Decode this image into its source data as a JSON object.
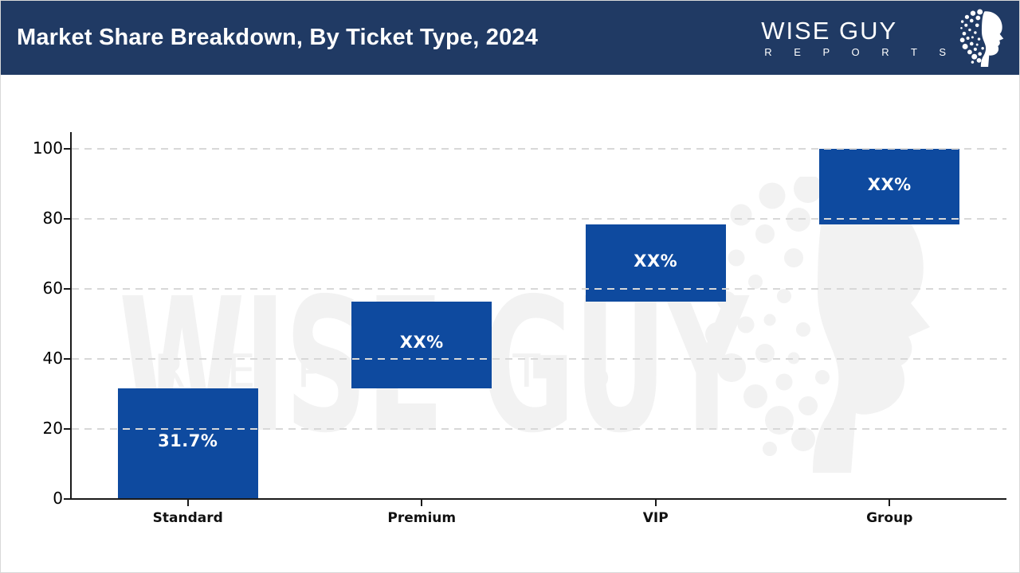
{
  "header": {
    "title": "Market Share Breakdown, By Ticket Type, 2024",
    "bg_color": "#203A64",
    "logo": {
      "line1": "WISE GUY",
      "line2": "R E P O R T S"
    }
  },
  "watermark": {
    "line1": "WISE GUY",
    "line2": "REPORTS",
    "color": "#f2f2f2"
  },
  "chart_data": {
    "type": "bar",
    "subtype": "waterfall",
    "title": "Market Share Breakdown, By Ticket Type, 2024",
    "categories": [
      "Standard",
      "Premium",
      "VIP",
      "Group"
    ],
    "segments": [
      {
        "category": "Standard",
        "start": 0,
        "end": 31.7,
        "label": "31.7%"
      },
      {
        "category": "Premium",
        "start": 31.7,
        "end": 56.3,
        "label": "XX%"
      },
      {
        "category": "VIP",
        "start": 56.3,
        "end": 78.3,
        "label": "XX%"
      },
      {
        "category": "Group",
        "start": 78.3,
        "end": 100,
        "label": "XX%"
      }
    ],
    "xlabel": "",
    "ylabel": "",
    "ylim": [
      0,
      100
    ],
    "yticks": [
      0,
      20,
      40,
      60,
      80,
      100
    ],
    "grid": "horizontal-dashed",
    "legend": "none",
    "bar_color": "#0E4A9F",
    "bar_label_color": "#ffffff",
    "axis_color": "#1a1a1a",
    "grid_color": "#d8d8d8"
  }
}
